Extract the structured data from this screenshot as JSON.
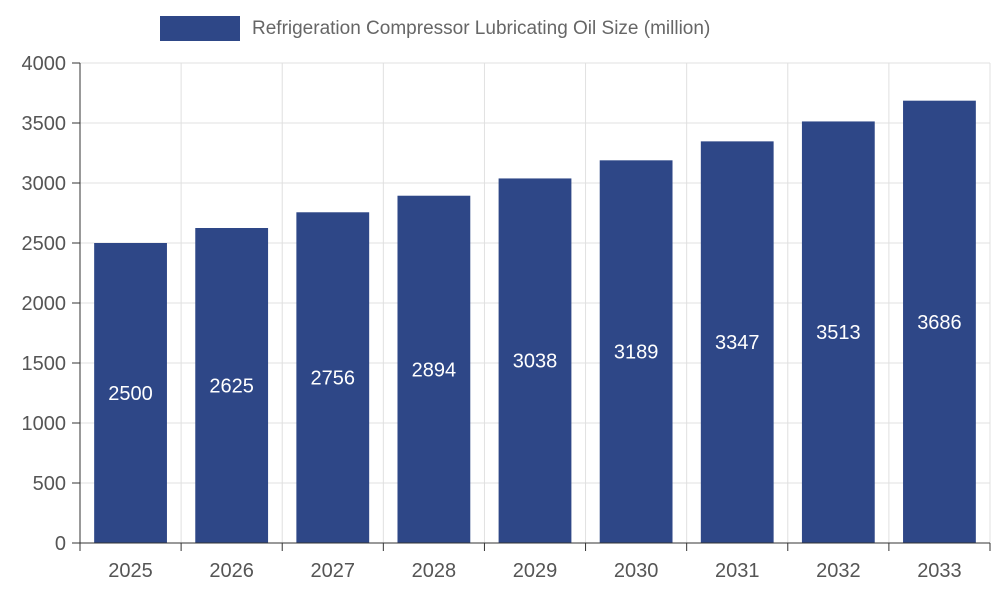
{
  "chart_data": {
    "type": "bar",
    "title": "Refrigeration Compressor Lubricating Oil Size (million)",
    "categories": [
      "2025",
      "2026",
      "2027",
      "2028",
      "2029",
      "2030",
      "2031",
      "2032",
      "2033"
    ],
    "values": [
      2500,
      2625,
      2756,
      2894,
      3038,
      3189,
      3347,
      3513,
      3686
    ],
    "xlabel": "",
    "ylabel": "",
    "ylim": [
      0,
      4000
    ],
    "ytick_step": 500,
    "ytick_labels": [
      "0",
      "500",
      "1000",
      "1500",
      "2000",
      "2500",
      "3000",
      "3500",
      "4000"
    ],
    "grid": true,
    "legend_position": "top",
    "value_labels_inside_bars": true,
    "colors": {
      "bar": "#2e4787",
      "grid": "#e0e0e0",
      "axis": "#333333",
      "tick_label": "#555555",
      "title_text": "#666666",
      "value_label": "#ffffff",
      "background": "#ffffff"
    }
  }
}
